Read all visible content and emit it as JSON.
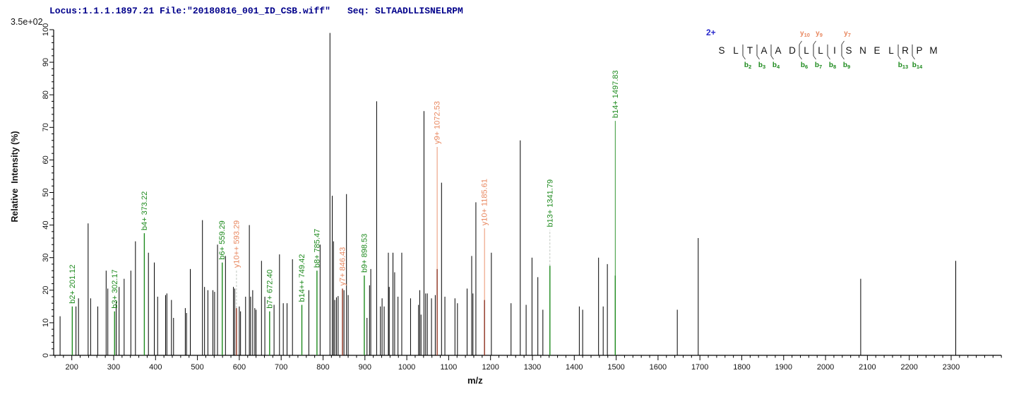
{
  "header": {
    "locus_file": "Locus:1.1.1.1897.21 File:\"20180816_001_ID_CSB.wiff\"",
    "seq": "Seq: SLTAADLLISNELRPM"
  },
  "scale_note": "3.5e+02",
  "axes": {
    "x": {
      "label": "m/z",
      "min": 155,
      "max": 2420,
      "major_start": 200,
      "major_end": 2300,
      "major_step": 100,
      "minor_step": 20
    },
    "y": {
      "label": "Relative  Intensity (%)",
      "min": 0,
      "max": 100,
      "major_step": 10,
      "minor_step": 2
    }
  },
  "sequence_panel": {
    "charge_label": "2+",
    "residues": [
      "S",
      "L",
      "T",
      "A",
      "A",
      "D",
      "L",
      "L",
      "I",
      "S",
      "N",
      "E",
      "L",
      "R",
      "P",
      "M"
    ],
    "cleavages": [
      {
        "after": 2,
        "b": "b2"
      },
      {
        "after": 3,
        "b": "b3"
      },
      {
        "after": 4,
        "b": "b4"
      },
      {
        "after": 6,
        "b": "b6",
        "y": "y10"
      },
      {
        "after": 7,
        "b": "b7",
        "y": "y9"
      },
      {
        "after": 8,
        "b": "b8"
      },
      {
        "after": 9,
        "b": "b9",
        "y": "y7"
      },
      {
        "after": 13,
        "b": "b13"
      },
      {
        "after": 14,
        "b": "b14"
      }
    ]
  },
  "colors": {
    "peak": "#000000",
    "axis": "#000000",
    "b_ion": "#1d8a1d",
    "y_ion_label": "#e8875f",
    "y_ion_peak": "#8e2f1c",
    "leader_dashed": "#b8c0b8",
    "header": "#00008B",
    "charge": "#2929cc"
  },
  "chart_data": {
    "type": "bar",
    "subtype": "ms2-stick-spectrum",
    "title": "",
    "xlabel": "m/z",
    "ylabel": "Relative  Intensity (%)",
    "xlim": [
      155,
      2420
    ],
    "ylim": [
      0,
      100
    ],
    "grid": false,
    "base_peak_absolute_intensity": "3.5e+02",
    "peaks": [
      [
        172,
        12
      ],
      [
        210,
        15
      ],
      [
        216,
        17.5
      ],
      [
        239,
        40.5
      ],
      [
        245,
        17.5
      ],
      [
        262,
        15
      ],
      [
        282,
        26
      ],
      [
        286,
        20.5
      ],
      [
        306,
        16.5
      ],
      [
        313,
        21
      ],
      [
        325,
        23.5
      ],
      [
        341,
        26
      ],
      [
        352,
        35
      ],
      [
        383,
        31.5
      ],
      [
        397,
        28.5
      ],
      [
        405,
        18
      ],
      [
        424,
        18.5
      ],
      [
        427,
        19
      ],
      [
        438,
        17
      ],
      [
        443,
        11.5
      ],
      [
        471,
        14.5
      ],
      [
        474,
        13
      ],
      [
        483,
        26.5
      ],
      [
        512,
        41.5
      ],
      [
        517,
        21
      ],
      [
        525,
        20
      ],
      [
        537,
        20
      ],
      [
        541,
        19.5
      ],
      [
        548,
        34
      ],
      [
        567,
        30.5
      ],
      [
        586,
        21
      ],
      [
        589,
        20.5
      ],
      [
        600,
        15
      ],
      [
        603,
        13.5
      ],
      [
        615,
        18
      ],
      [
        624,
        40
      ],
      [
        627,
        18
      ],
      [
        632,
        20
      ],
      [
        637,
        14.5
      ],
      [
        640,
        14
      ],
      [
        653,
        29
      ],
      [
        661,
        18
      ],
      [
        683,
        15.5
      ],
      [
        696,
        31
      ],
      [
        705,
        16
      ],
      [
        714,
        16
      ],
      [
        727,
        29.5
      ],
      [
        766,
        20
      ],
      [
        793,
        34
      ],
      [
        816.5,
        99
      ],
      [
        822,
        49
      ],
      [
        825,
        35
      ],
      [
        828,
        17
      ],
      [
        832,
        17.8
      ],
      [
        836,
        18.2
      ],
      [
        850,
        20
      ],
      [
        856,
        49.5
      ],
      [
        860,
        18.5
      ],
      [
        905,
        11.5
      ],
      [
        911,
        21.5
      ],
      [
        914,
        26.5
      ],
      [
        928,
        78
      ],
      [
        937,
        15
      ],
      [
        941,
        17.5
      ],
      [
        946,
        15
      ],
      [
        956,
        31.5
      ],
      [
        958,
        21
      ],
      [
        967,
        31.5
      ],
      [
        971,
        25.5
      ],
      [
        979,
        18
      ],
      [
        988,
        31.5
      ],
      [
        1009,
        17.5
      ],
      [
        1028,
        15.5
      ],
      [
        1031,
        20
      ],
      [
        1034,
        12.5
      ],
      [
        1041,
        75
      ],
      [
        1045,
        19
      ],
      [
        1049,
        19
      ],
      [
        1059,
        17.5
      ],
      [
        1068,
        18.5
      ],
      [
        1083,
        53
      ],
      [
        1091,
        18
      ],
      [
        1115,
        17.5
      ],
      [
        1121,
        16
      ],
      [
        1144,
        20.5
      ],
      [
        1155,
        30.5
      ],
      [
        1158,
        19
      ],
      [
        1165,
        47
      ],
      [
        1202,
        31.5
      ],
      [
        1249,
        16
      ],
      [
        1271,
        66
      ],
      [
        1285,
        15.5
      ],
      [
        1299,
        30
      ],
      [
        1313,
        24
      ],
      [
        1325,
        14
      ],
      [
        1412,
        15
      ],
      [
        1420,
        14
      ],
      [
        1458,
        30
      ],
      [
        1469,
        15
      ],
      [
        1479,
        28
      ],
      [
        1646,
        14
      ],
      [
        1696,
        36
      ],
      [
        2084,
        23.5
      ],
      [
        2311,
        29
      ]
    ],
    "annotated_peaks": [
      {
        "label": "b2+ 201.12",
        "mz": 201.12,
        "intensity": 15,
        "type": "b"
      },
      {
        "label": "b3+ 302.17",
        "mz": 302.17,
        "intensity": 13.5,
        "type": "b"
      },
      {
        "label": "b4+ 373.22",
        "mz": 373.22,
        "intensity": 37.5,
        "type": "b"
      },
      {
        "label": "b6+ 559.29",
        "mz": 559.29,
        "intensity": 28.5,
        "type": "b"
      },
      {
        "label": "y10++ 593.29",
        "mz": 593.29,
        "intensity": 14.5,
        "type": "y",
        "label_i": 26,
        "dashed": true
      },
      {
        "label": "b7+ 672.40",
        "mz": 672.4,
        "intensity": 13.5,
        "type": "b"
      },
      {
        "label": "b14++ 749.42",
        "mz": 749.42,
        "intensity": 15.5,
        "type": "b"
      },
      {
        "label": "b8+ 785.47",
        "mz": 785.47,
        "intensity": 26,
        "type": "b"
      },
      {
        "label": "y7+ 846.43",
        "mz": 846.43,
        "intensity": 20.5,
        "type": "y"
      },
      {
        "label": "b9+ 898.53",
        "mz": 898.53,
        "intensity": 24.5,
        "type": "b"
      },
      {
        "label": "y9+ 1072.53",
        "mz": 1072.53,
        "intensity": 26.5,
        "type": "y",
        "label_i": 64
      },
      {
        "label": "y10+ 1185.61",
        "mz": 1185.61,
        "intensity": 17,
        "type": "y",
        "label_i": 39
      },
      {
        "label": "b13+ 1341.79",
        "mz": 1341.79,
        "intensity": 27.5,
        "type": "b",
        "label_i": 38.5,
        "dashed": true
      },
      {
        "label": "b14+ 1497.83",
        "mz": 1497.83,
        "intensity": 24.5,
        "type": "b",
        "label_i": 72
      }
    ]
  }
}
